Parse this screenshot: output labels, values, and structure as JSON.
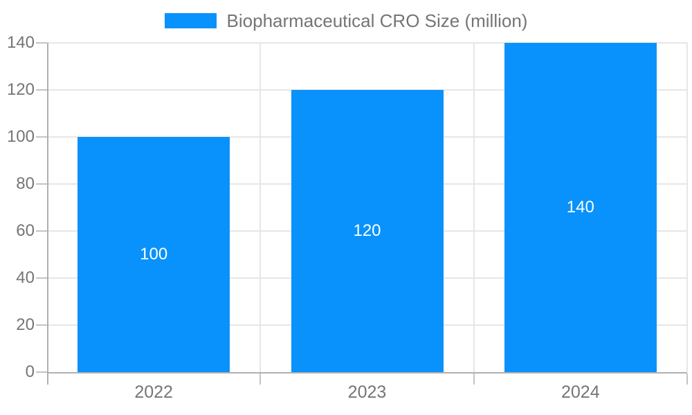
{
  "legend": {
    "label": "Biopharmaceutical CRO Size (million)"
  },
  "colors": {
    "bar": "#0992fb",
    "grid": "#e6e6e6",
    "axis": "#b0b0b0",
    "tick": "#c4c4c4",
    "axis_label": "#757575",
    "legend_text": "#757575",
    "data_label": "#ffffff"
  },
  "chart_data": {
    "type": "bar",
    "title": "Biopharmaceutical CRO Size (million)",
    "categories": [
      "2022",
      "2023",
      "2024"
    ],
    "series": [
      {
        "name": "Biopharmaceutical CRO Size (million)",
        "values": [
          100,
          120,
          140
        ]
      }
    ],
    "data_labels": [
      "100",
      "120",
      "140"
    ],
    "xlabel": "",
    "ylabel": "",
    "ylim": [
      0,
      140
    ],
    "yticks": [
      0,
      20,
      40,
      60,
      80,
      100,
      120,
      140
    ],
    "grid": true,
    "legend_position": "top"
  }
}
